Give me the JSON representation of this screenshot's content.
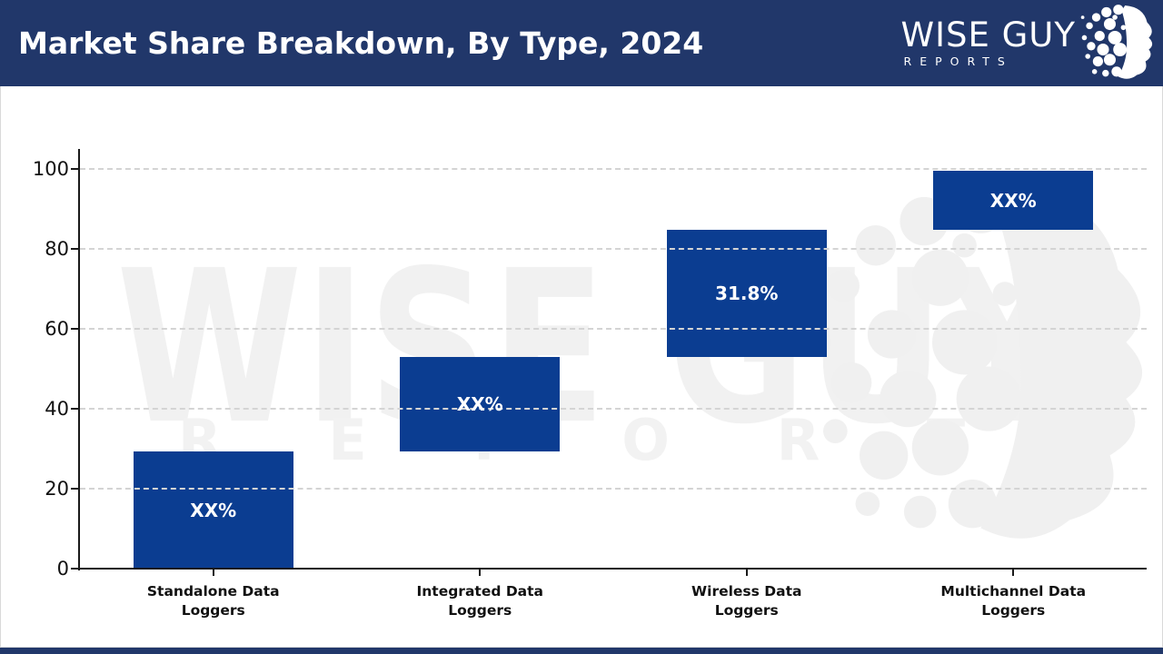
{
  "header": {
    "title": "Market Share Breakdown, By Type, 2024",
    "brand_line1": "WISE GUY",
    "brand_line2": "REPORTS"
  },
  "watermark": {
    "line1": "WISE GUY",
    "line2": "R E P O R T S"
  },
  "colors": {
    "header_bg": "#21376a",
    "footer_bg": "#21376a",
    "bar": "#0b3d91",
    "grid": "#d4d4d4",
    "axis": "#1a1a1a",
    "bar_label": "#ffffff",
    "watermark": "#f1f1f1"
  },
  "chart_data": {
    "type": "bar",
    "variant": "floating-waterfall",
    "title": "Market Share Breakdown, By Type, 2024",
    "categories": [
      {
        "line1": "Standalone Data",
        "line2": "Loggers"
      },
      {
        "line1": "Integrated Data",
        "line2": "Loggers"
      },
      {
        "line1": "Wireless Data",
        "line2": "Loggers"
      },
      {
        "line1": "Multichannel Data",
        "line2": "Loggers"
      }
    ],
    "bars": [
      {
        "category": "Standalone Data Loggers",
        "start": 0,
        "end": 29.3,
        "value_label": "XX%"
      },
      {
        "category": "Integrated Data Loggers",
        "start": 29.3,
        "end": 53.0,
        "value_label": "XX%"
      },
      {
        "category": "Wireless Data Loggers",
        "start": 53.0,
        "end": 84.8,
        "value_label": "31.8%"
      },
      {
        "category": "Multichannel Data Loggers",
        "start": 84.8,
        "end": 99.5,
        "value_label": "XX%"
      }
    ],
    "yticks": [
      0,
      20,
      40,
      60,
      80,
      100
    ],
    "ylim": [
      0,
      105
    ],
    "xlabel": "",
    "ylabel": "",
    "grid": "horizontal-dashed",
    "legend": null
  }
}
